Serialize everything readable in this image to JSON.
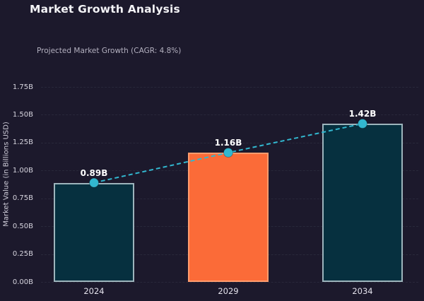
{
  "chart_data": {
    "type": "bar",
    "title": "Market Growth Analysis",
    "subtitle": "Projected Market Growth (CAGR: 4.8%)",
    "categories": [
      "2024",
      "2029",
      "2034"
    ],
    "values": [
      0.89,
      1.16,
      1.42
    ],
    "value_labels": [
      "0.89B",
      "1.16B",
      "1.42B"
    ],
    "xlabel": "",
    "ylabel": "Market Value (in Billions USD)",
    "ylim": [
      0,
      1.75
    ],
    "ytick_interval": 0.25,
    "ytick_labels": [
      "0.00B",
      "0.25B",
      "0.50B",
      "0.75B",
      "1.00B",
      "1.25B",
      "1.50B",
      "1.75B"
    ],
    "grid": "horizontal-dashed-faint",
    "legend": "none",
    "trend_line": {
      "style": "dashed",
      "marker": "circle",
      "connects": "bar tops"
    },
    "colors": {
      "background": "#1c192c",
      "bar_fill": [
        "#06303f",
        "#fb6b38",
        "#06303f"
      ],
      "bar_edge": [
        "#9db4bc",
        "#ff9c6e",
        "#9db4bc"
      ],
      "trend": "#32b7cf",
      "title_text": "#f3f3f6",
      "subtitle_text": "#b3b0bf",
      "ytick_text": "#d6d4de",
      "xtick_text": "#e4e2ec",
      "axis_label_text": "#cfcdd9",
      "value_label_text": "#ffffff"
    }
  }
}
